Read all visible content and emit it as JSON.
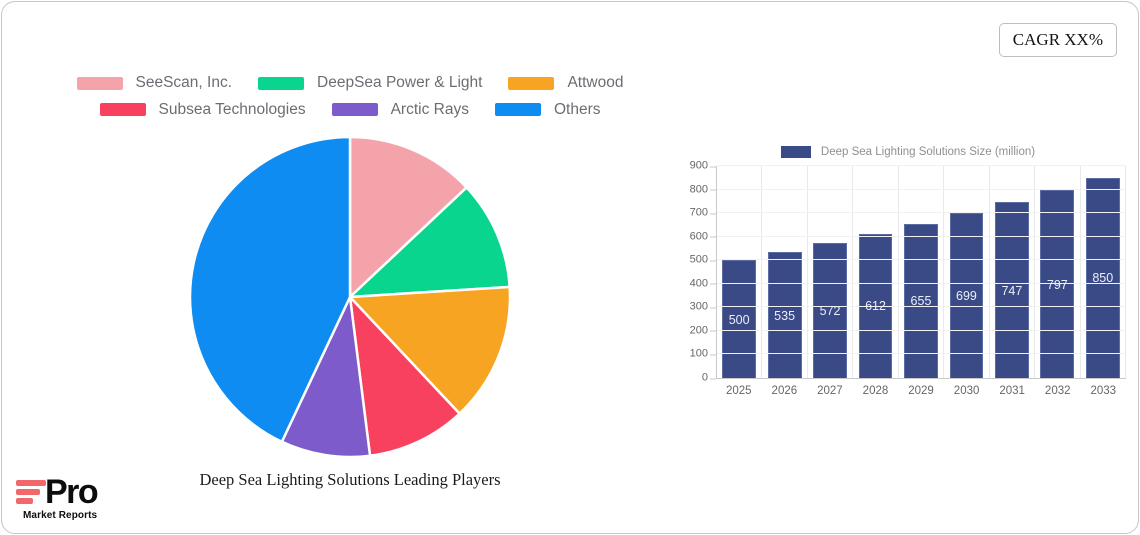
{
  "cagr": {
    "label": "CAGR XX%"
  },
  "logo": {
    "title": "Pro",
    "subtitle": "Market Reports",
    "accent_color": "#f2686a"
  },
  "colors": {
    "bar": "#3a4a87",
    "card_border": "#c6c6c6"
  },
  "chart_data": [
    {
      "type": "pie",
      "title": "Deep Sea Lighting Solutions Leading Players",
      "legend_position": "top",
      "start_angle_deg": 0,
      "direction": "clockwise",
      "slices": [
        {
          "label": "SeeScan, Inc.",
          "value_pct": 13,
          "color": "#f5a3ab"
        },
        {
          "label": "DeepSea Power & Light",
          "value_pct": 11,
          "color": "#0ad58f"
        },
        {
          "label": "Attwood",
          "value_pct": 14,
          "color": "#f8a423"
        },
        {
          "label": "Subsea Technologies",
          "value_pct": 10,
          "color": "#f8415f"
        },
        {
          "label": "Arctic Rays",
          "value_pct": 9,
          "color": "#7e5bcb"
        },
        {
          "label": "Others",
          "value_pct": 43,
          "color": "#0e8cf1"
        }
      ]
    },
    {
      "type": "bar",
      "title": "Deep Sea Lighting Solutions Size (million)",
      "categories": [
        "2025",
        "2026",
        "2027",
        "2028",
        "2029",
        "2030",
        "2031",
        "2032",
        "2033"
      ],
      "values": [
        500,
        535,
        572,
        612,
        655,
        699,
        747,
        797,
        850
      ],
      "ylim": [
        0,
        900
      ],
      "ytick_step": 100,
      "bar_color": "#3a4a87",
      "grid": true,
      "value_labels": "inside-middle",
      "legend_position": "top"
    }
  ]
}
